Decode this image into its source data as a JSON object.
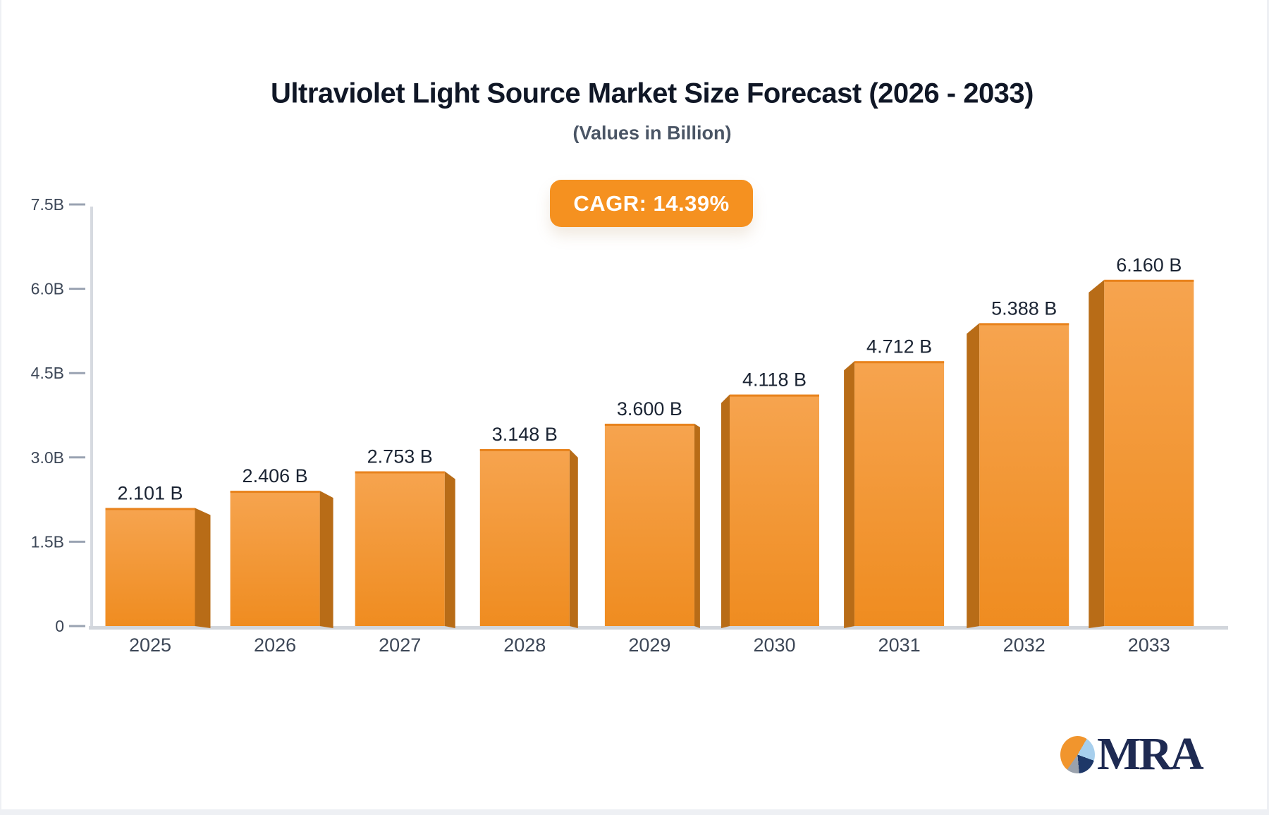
{
  "header": {
    "cagr_badge": "CAGR: 14.39%",
    "badge_color": "#F59120"
  },
  "chart_data": {
    "type": "bar",
    "title": "Ultraviolet Light Source Market Size Forecast (2026 - 2033)",
    "subtitle": "(Values in Billion)",
    "annotation": "CAGR: 14.39%",
    "categories": [
      "2025",
      "2026",
      "2027",
      "2028",
      "2029",
      "2030",
      "2031",
      "2032",
      "2033"
    ],
    "values": [
      2.101,
      2.406,
      2.753,
      3.148,
      3.6,
      4.118,
      4.712,
      5.388,
      6.16
    ],
    "value_labels": [
      "2.101 B",
      "2.406 B",
      "2.753 B",
      "3.148 B",
      "3.600 B",
      "4.118 B",
      "4.712 B",
      "5.388 B",
      "6.160 B"
    ],
    "xlabel": "",
    "ylabel": "",
    "ylim": [
      0,
      7.5
    ],
    "y_ticks": [
      "7.5B",
      "6.0B",
      "4.5B",
      "3.0B",
      "1.5B",
      "0"
    ],
    "y_tick_values": [
      7.5,
      6.0,
      4.5,
      3.0,
      1.5,
      0
    ],
    "grid": false,
    "legend": null,
    "style": {
      "bar_gradient_top": "#F6A44F",
      "bar_gradient_bottom": "#EF8C20",
      "bar_side_color": "#B86C17",
      "bar_top_edge_color": "#E8831D",
      "axis_line_color": "#D6DAE0",
      "baseline_color": "#D2D6DC",
      "tick_mark_color": "#9AA3B2",
      "axis_label_color": "#3D4757",
      "value_label_color": "#1B2433"
    }
  },
  "logo": {
    "text": "MRA",
    "text_color": "#1E2A52",
    "pie_colors": {
      "orange": "#F1952D",
      "light_blue": "#A7CFED",
      "navy": "#1E3868",
      "gray": "#9AA2AD"
    }
  }
}
